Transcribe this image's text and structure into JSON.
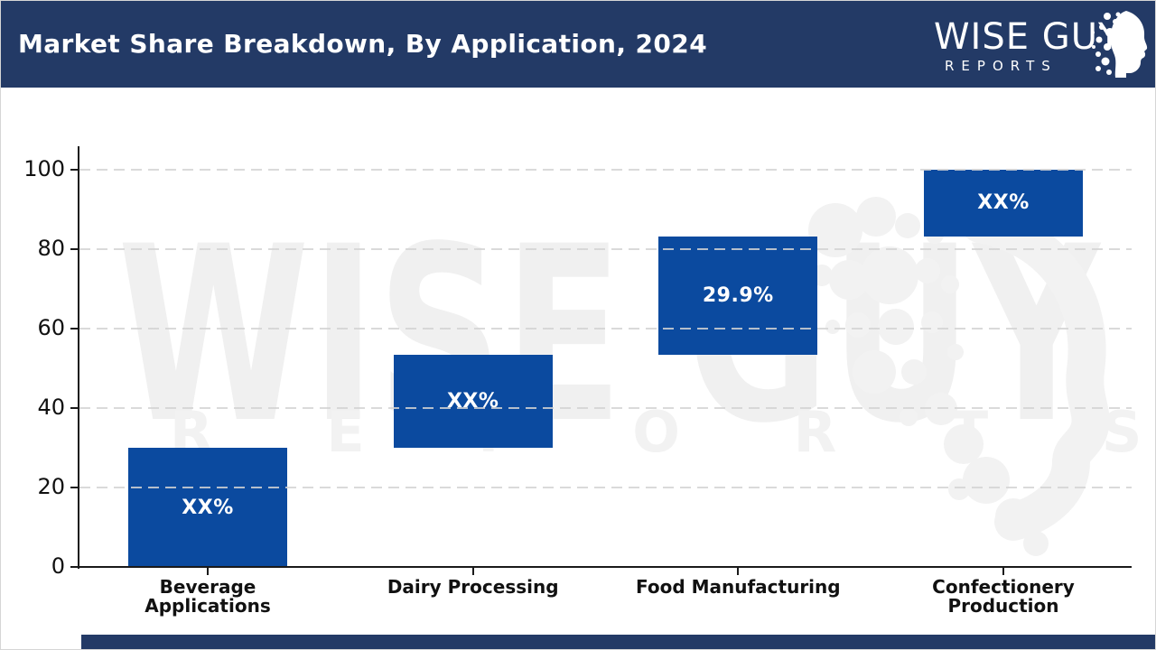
{
  "header": {
    "title": "Market Share Breakdown, By Application, 2024",
    "logo_line1": "WISE GUY",
    "logo_line2": "R E P O R T S"
  },
  "watermark": {
    "line1": "WISE GUY",
    "line2": "R E P O R T S"
  },
  "chart_data": {
    "type": "bar",
    "subtype": "floating-waterfall",
    "title": "Market Share Breakdown, By Application, 2024",
    "categories": [
      "Beverage Applications",
      "Dairy Processing",
      "Food Manufacturing",
      "Confectionery Production"
    ],
    "categories_lines": [
      [
        "Beverage",
        "Applications"
      ],
      [
        "Dairy Processing"
      ],
      [
        "Food Manufacturing"
      ],
      [
        "Confectionery",
        "Production"
      ]
    ],
    "segments": [
      {
        "category": "Beverage Applications",
        "start": 0,
        "end": 29.9,
        "label": "XX%"
      },
      {
        "category": "Dairy Processing",
        "start": 29.9,
        "end": 53.3,
        "label": "XX%"
      },
      {
        "category": "Food Manufacturing",
        "start": 53.3,
        "end": 83.2,
        "label": "29.9%"
      },
      {
        "category": "Confectionery Production",
        "start": 83.2,
        "end": 100,
        "label": "XX%"
      }
    ],
    "yticks": [
      0,
      20,
      40,
      60,
      80,
      100
    ],
    "ylim": [
      0,
      106
    ],
    "xlabel": "",
    "ylabel": "",
    "grid": "horizontal-dashed",
    "legend": "none"
  },
  "colors": {
    "header_bg": "#233a66",
    "footer_bg": "#233a66",
    "bar": "#0b4a9f",
    "bar_label": "#ffffff",
    "axis": "#1a1a1a",
    "grid": "#d9d9d9",
    "watermark": "#f0f0f0"
  }
}
